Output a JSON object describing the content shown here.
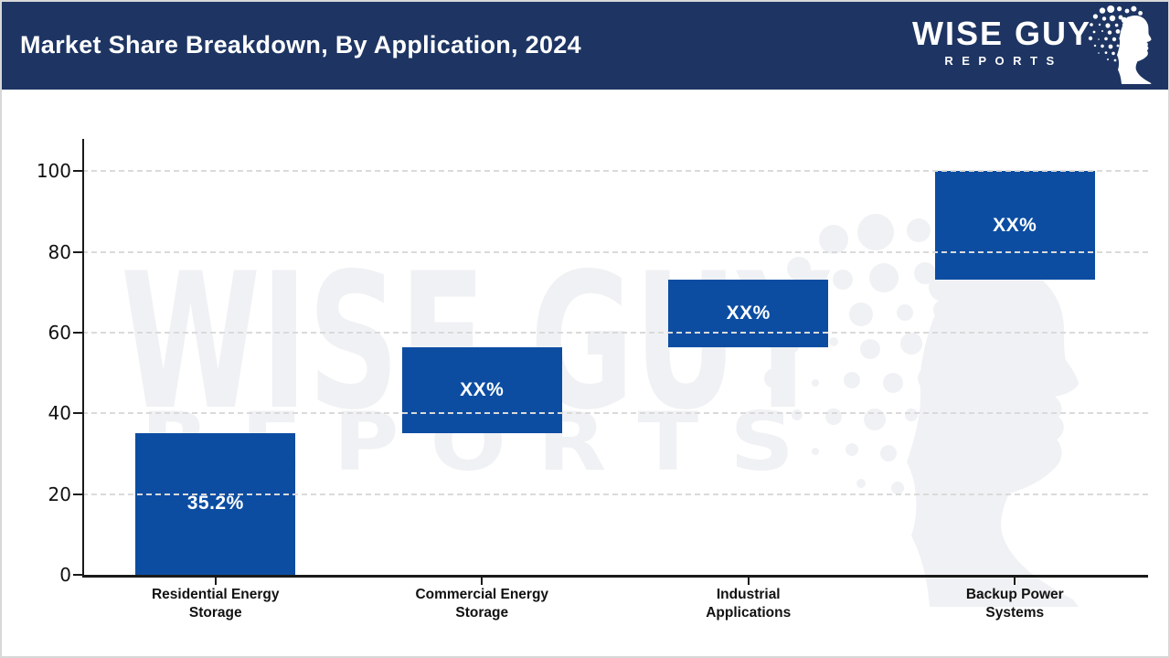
{
  "header": {
    "title": "Market Share Breakdown, By Application, 2024",
    "logo": {
      "name": "WISE GUY",
      "sub": "REPORTS"
    }
  },
  "watermark": {
    "big_text": "WISE GUY",
    "sub_text": "R E P O R T S"
  },
  "colors": {
    "header_bg": "#1E3563",
    "bar_fill": "#0C4DA2",
    "grid": "#DADADA",
    "axis": "#1A1A1A",
    "bar_label_text": "#FFFFFF",
    "watermark": "#F0F1F4"
  },
  "chart_data": {
    "type": "bar",
    "subtype": "floating-waterfall",
    "title": "Market Share Breakdown, By Application, 2024",
    "categories": [
      "Residential Energy\nStorage",
      "Commercial Energy\nStorage",
      "Industrial\nApplications",
      "Backup Power\nSystems"
    ],
    "segments": [
      {
        "start": 0,
        "end": 35.2,
        "label": "35.2%"
      },
      {
        "start": 35.2,
        "end": 56.4,
        "label": "XX%"
      },
      {
        "start": 56.4,
        "end": 73.2,
        "label": "XX%"
      },
      {
        "start": 73.2,
        "end": 100,
        "label": "XX%"
      }
    ],
    "yticks": [
      0,
      20,
      40,
      60,
      80,
      100
    ],
    "ylim": [
      0,
      108
    ],
    "xlabel": "",
    "ylabel": "",
    "grid": "horizontal-dashed",
    "legend": "none"
  }
}
